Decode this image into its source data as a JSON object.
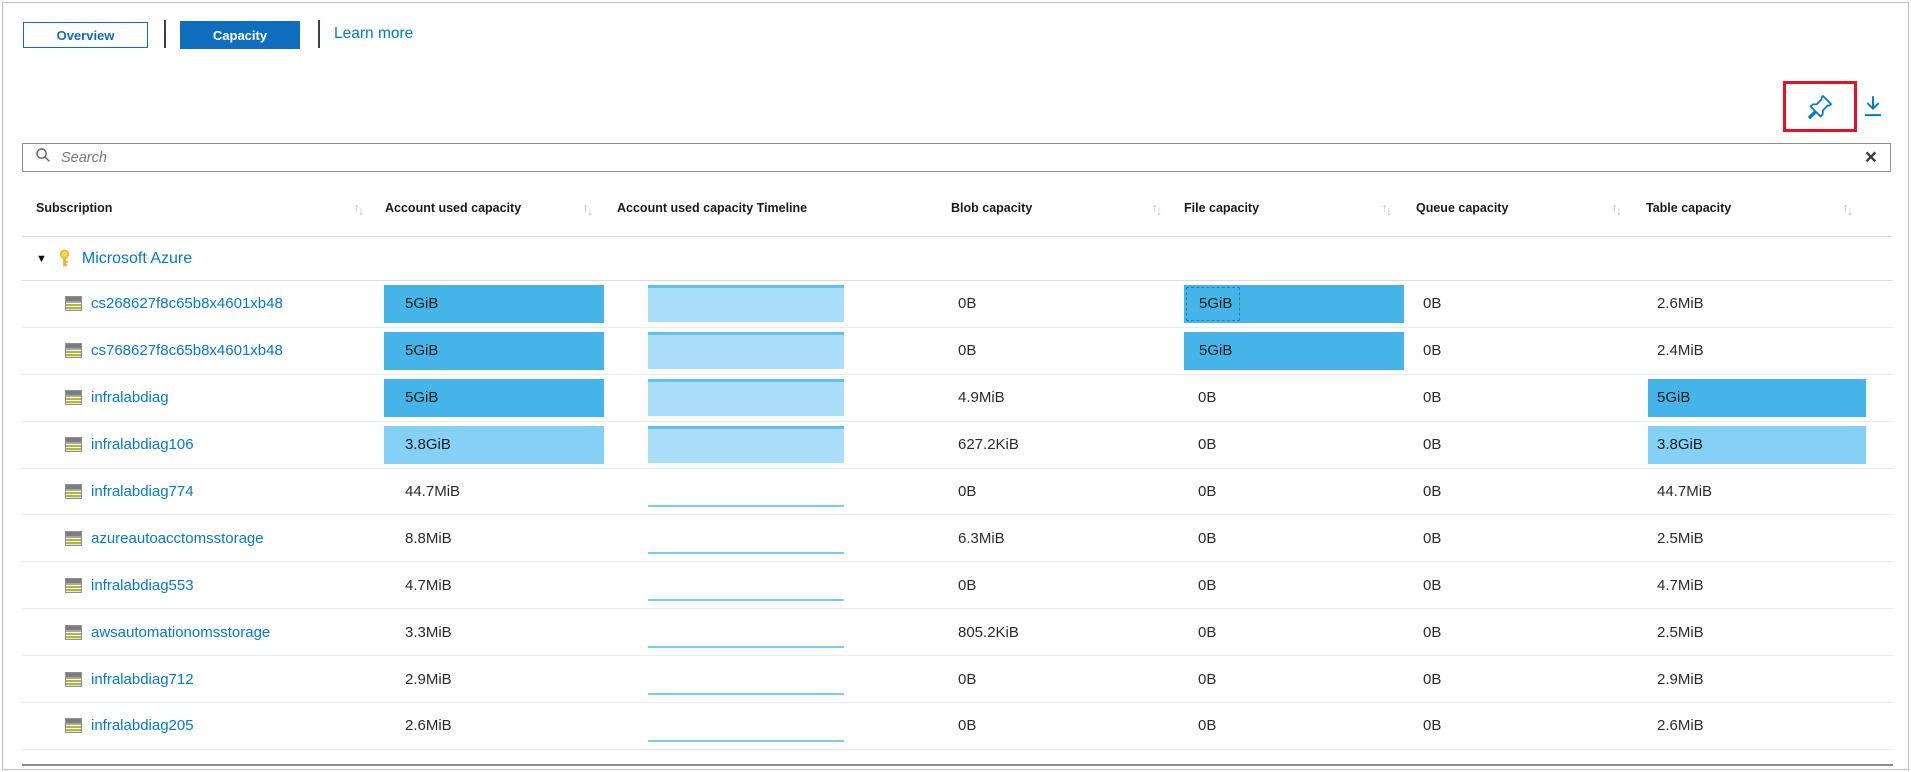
{
  "tabs": {
    "overview": "Overview",
    "capacity": "Capacity",
    "learn_more": "Learn more"
  },
  "toolbar": {
    "pin_icon": "pushpin-icon-highlighted",
    "download_icon": "download-icon"
  },
  "search": {
    "placeholder": "Search",
    "clear_icon": "×"
  },
  "icons": {
    "caret_down": "▼",
    "sort_asc": "↑",
    "sort_desc": "↓"
  },
  "table": {
    "columns": [
      {
        "label": "Subscription",
        "sortable": true
      },
      {
        "label": "Account used capacity",
        "sortable": true
      },
      {
        "label": "Account used capacity Timeline",
        "sortable": false
      },
      {
        "label": "Blob capacity",
        "sortable": true
      },
      {
        "label": "File capacity",
        "sortable": true
      },
      {
        "label": "Queue capacity",
        "sortable": true
      },
      {
        "label": "Table capacity",
        "sortable": true
      }
    ],
    "group": {
      "label": "Microsoft Azure",
      "expanded": true
    },
    "rows": [
      {
        "name": "cs268627f8c65b8x4601xb48",
        "account": {
          "value": "5GiB",
          "bar": "dark"
        },
        "timeline": "area",
        "blob": "0B",
        "file": {
          "value": "5GiB",
          "bar": "dark",
          "focused": true
        },
        "queue": "0B",
        "table": {
          "value": "2.6MiB",
          "bar": null
        }
      },
      {
        "name": "cs768627f8c65b8x4601xb48",
        "account": {
          "value": "5GiB",
          "bar": "dark"
        },
        "timeline": "area",
        "blob": "0B",
        "file": {
          "value": "5GiB",
          "bar": "dark"
        },
        "queue": "0B",
        "table": {
          "value": "2.4MiB",
          "bar": null
        }
      },
      {
        "name": "infralabdiag",
        "account": {
          "value": "5GiB",
          "bar": "dark"
        },
        "timeline": "area",
        "blob": "4.9MiB",
        "file": {
          "value": "0B",
          "bar": null
        },
        "queue": "0B",
        "table": {
          "value": "5GiB",
          "bar": "dark"
        }
      },
      {
        "name": "infralabdiag106",
        "account": {
          "value": "3.8GiB",
          "bar": "light"
        },
        "timeline": "area",
        "blob": "627.2KiB",
        "file": {
          "value": "0B",
          "bar": null
        },
        "queue": "0B",
        "table": {
          "value": "3.8GiB",
          "bar": "light"
        }
      },
      {
        "name": "infralabdiag774",
        "account": {
          "value": "44.7MiB",
          "bar": null
        },
        "timeline": "flat",
        "blob": "0B",
        "file": {
          "value": "0B",
          "bar": null
        },
        "queue": "0B",
        "table": {
          "value": "44.7MiB",
          "bar": null
        }
      },
      {
        "name": "azureautoacctomsstorage",
        "account": {
          "value": "8.8MiB",
          "bar": null
        },
        "timeline": "flat",
        "blob": "6.3MiB",
        "file": {
          "value": "0B",
          "bar": null
        },
        "queue": "0B",
        "table": {
          "value": "2.5MiB",
          "bar": null
        }
      },
      {
        "name": "infralabdiag553",
        "account": {
          "value": "4.7MiB",
          "bar": null
        },
        "timeline": "flat",
        "blob": "0B",
        "file": {
          "value": "0B",
          "bar": null
        },
        "queue": "0B",
        "table": {
          "value": "4.7MiB",
          "bar": null
        }
      },
      {
        "name": "awsautomationomsstorage",
        "account": {
          "value": "3.3MiB",
          "bar": null
        },
        "timeline": "flat",
        "blob": "805.2KiB",
        "file": {
          "value": "0B",
          "bar": null
        },
        "queue": "0B",
        "table": {
          "value": "2.5MiB",
          "bar": null
        }
      },
      {
        "name": "infralabdiag712",
        "account": {
          "value": "2.9MiB",
          "bar": null
        },
        "timeline": "flat",
        "blob": "0B",
        "file": {
          "value": "0B",
          "bar": null
        },
        "queue": "0B",
        "table": {
          "value": "2.9MiB",
          "bar": null
        }
      },
      {
        "name": "infralabdiag205",
        "account": {
          "value": "2.6MiB",
          "bar": null
        },
        "timeline": "flat",
        "blob": "0B",
        "file": {
          "value": "0B",
          "bar": null
        },
        "queue": "0B",
        "table": {
          "value": "2.6MiB",
          "bar": null
        }
      }
    ]
  },
  "colors": {
    "accent_blue": "#0078d4",
    "button_blue": "#106ebe",
    "bar_dark": "#45b5e9",
    "bar_light": "#85d1f5",
    "timeline_fill": "#abdef8",
    "timeline_stroke": "#5fc2ee",
    "highlight_red": "#e81123"
  }
}
